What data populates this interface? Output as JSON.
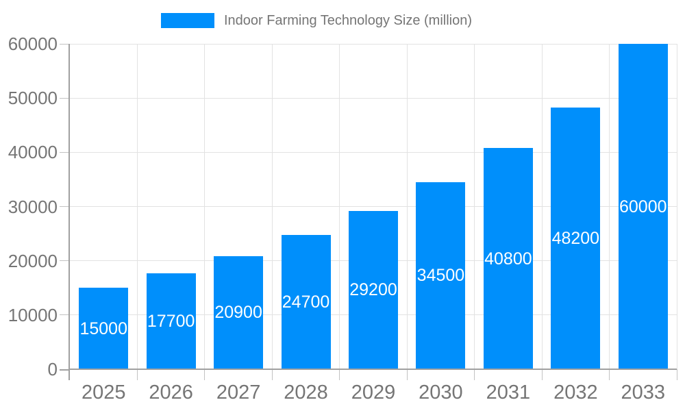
{
  "chart_data": {
    "type": "bar",
    "title": "",
    "legend": "Indoor Farming Technology Size (million)",
    "legend_position": "top",
    "categories": [
      "2025",
      "2026",
      "2027",
      "2028",
      "2029",
      "2030",
      "2031",
      "2032",
      "2033"
    ],
    "values": [
      15000,
      17700,
      20900,
      24700,
      29200,
      34500,
      40800,
      48200,
      60000
    ],
    "value_labels": [
      "15000",
      "17700",
      "20900",
      "24700",
      "29200",
      "34500",
      "40800",
      "48200",
      "60000"
    ],
    "value_label_position": "inside-center",
    "xlabel": "",
    "ylabel": "",
    "ylim": [
      0,
      60000
    ],
    "ytick_interval": 10000,
    "yticks": [
      0,
      10000,
      20000,
      30000,
      40000,
      50000,
      60000
    ],
    "ytick_labels": [
      "0",
      "10000",
      "20000",
      "30000",
      "40000",
      "50000",
      "60000"
    ],
    "grid": true,
    "colors": {
      "bar": "#008FFB",
      "bar_label": "#FFFFFF",
      "axis_line": "#A0A0A0",
      "gridline": "#E2E2E2",
      "tick": "#C2C2C2",
      "tick_label": "#757575",
      "legend_label": "#757575",
      "background": "#FFFFFF"
    }
  }
}
